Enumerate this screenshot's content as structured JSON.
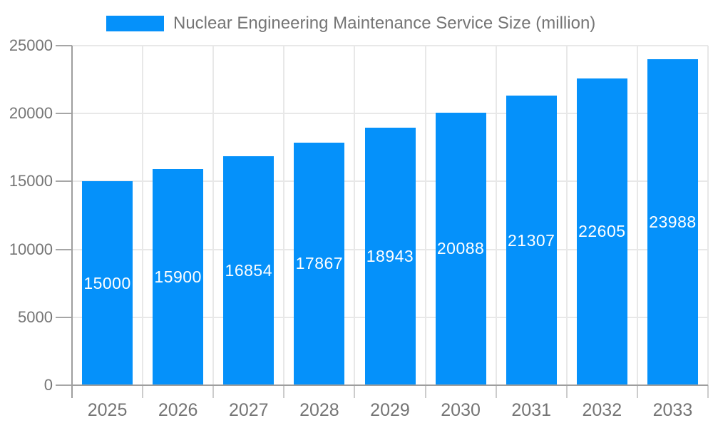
{
  "chart_data": {
    "type": "bar",
    "title": "Nuclear Engineering Maintenance Service Size (million)",
    "series_name": "Nuclear Engineering Maintenance Service Size (million)",
    "categories": [
      "2025",
      "2026",
      "2027",
      "2028",
      "2029",
      "2030",
      "2031",
      "2032",
      "2033"
    ],
    "values": [
      15000,
      15900,
      16854,
      17867,
      18943,
      20088,
      21307,
      22605,
      23988
    ],
    "xlabel": "",
    "ylabel": "",
    "ylim": [
      0,
      25000
    ],
    "y_ticks": [
      0,
      5000,
      10000,
      15000,
      20000,
      25000
    ],
    "grid": true,
    "legend_position": "top",
    "bar_color": "#0591fa",
    "value_label_color": "#ffffff",
    "axis_text_color": "#757575",
    "axis_line_color": "#9e9e9e",
    "gridline_color": "#e8e8e8"
  }
}
